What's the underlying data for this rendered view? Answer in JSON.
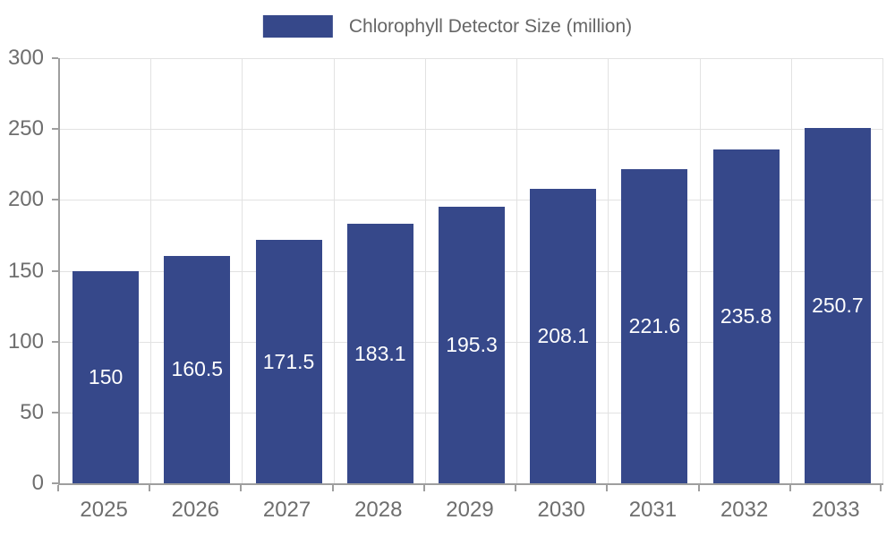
{
  "legend": {
    "label": "Chlorophyll Detector Size (million)",
    "swatch_color": "#36488a"
  },
  "chart_data": {
    "type": "bar",
    "title": "Chlorophyll Detector Size (million)",
    "categories": [
      "2025",
      "2026",
      "2027",
      "2028",
      "2029",
      "2030",
      "2031",
      "2032",
      "2033"
    ],
    "values": [
      150,
      160.5,
      171.5,
      183.1,
      195.3,
      208.1,
      221.6,
      235.8,
      250.7
    ],
    "value_labels": [
      "150",
      "160.5",
      "171.5",
      "183.1",
      "195.3",
      "208.1",
      "221.6",
      "235.8",
      "250.7"
    ],
    "xlabel": "",
    "ylabel": "",
    "ylim": [
      0,
      300
    ],
    "yticks": [
      0,
      50,
      100,
      150,
      200,
      250,
      300
    ],
    "bar_color": "#36488a",
    "bar_label_color": "#ffffff",
    "axis_color": "#9e9e9e",
    "grid_color": "#e2e2e2",
    "tick_label_color": "#6e6e6e",
    "grid": true,
    "legend_position": "top"
  }
}
